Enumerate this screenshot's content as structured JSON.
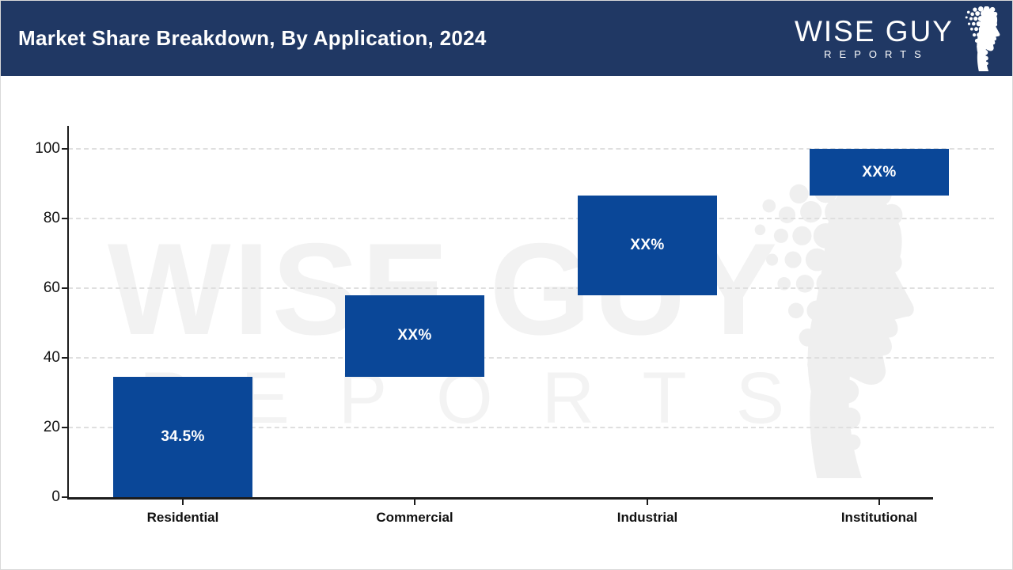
{
  "header": {
    "title": "Market Share Breakdown, By Application, 2024",
    "logo": {
      "line1": "WISE GUY",
      "line2": "REPORTS"
    }
  },
  "watermark": {
    "line1": "WISE GUY",
    "line2": "REPORTS"
  },
  "colors": {
    "header_bg": "#203864",
    "bar": "#0a4798",
    "bar_label_text": "#ffffff",
    "axis": "#1c1c1c",
    "grid": "#dfdfdf",
    "watermark": "#f2f2f2"
  },
  "chart_data": {
    "type": "bar",
    "subtype": "waterfall",
    "title": "Market Share Breakdown, By Application, 2024",
    "categories": [
      "Residential",
      "Commercial",
      "Industrial",
      "Institutional"
    ],
    "segments": [
      {
        "category": "Residential",
        "start": 0,
        "end": 34.5,
        "label": "34.5%"
      },
      {
        "category": "Commercial",
        "start": 34.5,
        "end": 58,
        "label": "XX%"
      },
      {
        "category": "Industrial",
        "start": 58,
        "end": 86.5,
        "label": "XX%"
      },
      {
        "category": "Institutional",
        "start": 86.5,
        "end": 100,
        "label": "XX%"
      }
    ],
    "xlabel": "",
    "ylabel": "",
    "yticks": [
      0,
      20,
      40,
      60,
      80,
      100
    ],
    "ylim": [
      0,
      105
    ],
    "grid": "horizontal-dashed",
    "legend": "none"
  }
}
